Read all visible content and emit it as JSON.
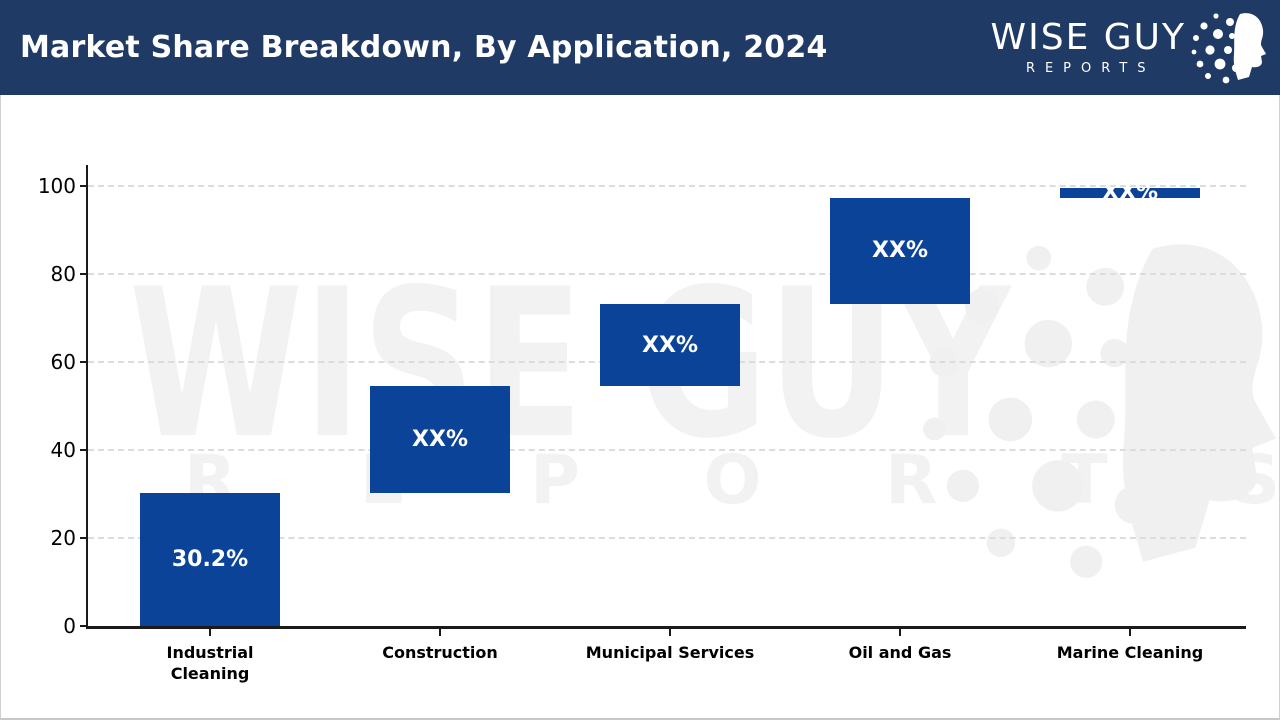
{
  "header": {
    "title": "Market Share Breakdown, By Application, 2024",
    "logo": {
      "line1": "WISE GUY",
      "line2": "REPORTS"
    }
  },
  "watermark": {
    "line1": "WISE GUY",
    "line2": "R E P O R T S"
  },
  "colors": {
    "header_bg": "#203a66",
    "bar": "#0a4397",
    "grid": "#dcdcdc",
    "axis": "#1a1a1a",
    "bar_label": "#ffffff",
    "watermark": "#f2f2f2"
  },
  "chart_data": {
    "type": "bar",
    "subtype": "waterfall",
    "title": "Market Share Breakdown, By Application, 2024",
    "xlabel": "",
    "ylabel": "",
    "ylim": [
      0,
      105
    ],
    "yticks": [
      0,
      20,
      40,
      60,
      80,
      100
    ],
    "grid": "horizontal-dashed",
    "legend": "none",
    "categories": [
      "Industrial\nCleaning",
      "Construction",
      "Municipal Services",
      "Oil and Gas",
      "Marine Cleaning"
    ],
    "segments": [
      {
        "category": "Industrial Cleaning",
        "from": 0,
        "to": 30.2,
        "label": "30.2%"
      },
      {
        "category": "Construction",
        "from": 30.2,
        "to": 54.5,
        "label": "XX%"
      },
      {
        "category": "Municipal Services",
        "from": 54.5,
        "to": 73.2,
        "label": "XX%"
      },
      {
        "category": "Oil and Gas",
        "from": 73.2,
        "to": 97.3,
        "label": "XX%"
      },
      {
        "category": "Marine Cleaning",
        "from": 97.3,
        "to": 99.6,
        "label": "XX%"
      }
    ]
  }
}
